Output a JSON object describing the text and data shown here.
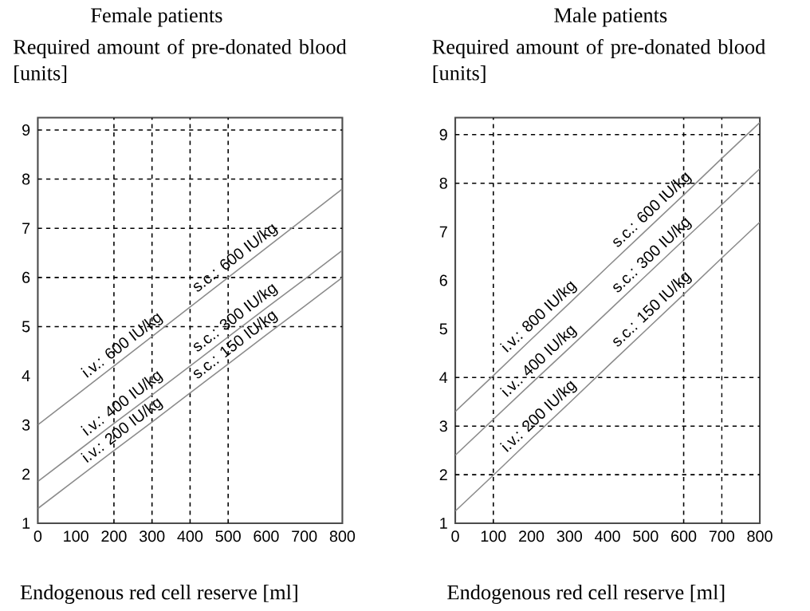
{
  "chart_data": [
    {
      "type": "line",
      "title": "Female patients",
      "ylabel": "Required amount of pre-donated blood [units]",
      "xlabel": "Endogenous red cell reserve [ml]",
      "x": [
        0,
        100,
        200,
        300,
        400,
        500,
        600,
        700,
        800
      ],
      "series": [
        {
          "color": "#8c8c8c",
          "values": [
            3.0,
            3.6,
            4.2,
            4.8,
            5.4,
            6.0,
            6.6,
            7.2,
            7.8
          ]
        },
        {
          "color": "#8c8c8c",
          "values": [
            1.85,
            2.44,
            3.03,
            3.61,
            4.2,
            4.79,
            5.38,
            5.96,
            6.55
          ]
        },
        {
          "color": "#8c8c8c",
          "values": [
            1.3,
            1.89,
            2.48,
            3.06,
            3.65,
            4.24,
            4.83,
            5.41,
            6.0
          ]
        }
      ],
      "xlim": [
        0,
        800
      ],
      "ylim": [
        1,
        9.25
      ],
      "xticks": [
        0,
        100,
        200,
        300,
        400,
        500,
        600,
        700,
        800
      ],
      "yticks": [
        1,
        2,
        3,
        4,
        5,
        6,
        7,
        8,
        9
      ],
      "ref_lines": [
        {
          "axis": "x",
          "value": 200,
          "line_style": "dashed",
          "color": "#000000"
        },
        {
          "axis": "x",
          "value": 300,
          "line_style": "dashed",
          "color": "#000000"
        },
        {
          "axis": "x",
          "value": 400,
          "line_style": "dashed",
          "color": "#000000"
        },
        {
          "axis": "x",
          "value": 500,
          "line_style": "dashed",
          "color": "#000000"
        },
        {
          "axis": "y",
          "value": 5,
          "line_style": "dashed",
          "color": "#000000"
        },
        {
          "axis": "y",
          "value": 6,
          "line_style": "dashed",
          "color": "#000000"
        },
        {
          "axis": "y",
          "value": 7,
          "line_style": "dashed",
          "color": "#000000"
        },
        {
          "axis": "y",
          "value": 8,
          "line_style": "dashed",
          "color": "#000000"
        },
        {
          "axis": "y",
          "value": 9,
          "line_style": "dashed",
          "color": "#000000"
        }
      ],
      "annotations": [
        "i.v.: 600 IU/kg",
        "s.c.: 600 IU/kg",
        "i.v.: 400 IU/kg",
        "s.c.: 300 IU/kg",
        "i.v.: 200 IU/kg",
        "s.c.: 150 IU/kg"
      ]
    },
    {
      "type": "line",
      "title": "Male patients",
      "ylabel": "Required amount of pre-donated blood [units]",
      "xlabel": "Endogenous red cell reserve [ml]",
      "x": [
        0,
        100,
        200,
        300,
        400,
        500,
        600,
        700,
        800
      ],
      "series": [
        {
          "color": "#8c8c8c",
          "values": [
            3.3,
            4.04,
            4.79,
            5.53,
            6.28,
            7.02,
            7.76,
            8.51,
            9.25
          ]
        },
        {
          "color": "#8c8c8c",
          "values": [
            2.4,
            3.14,
            3.88,
            4.61,
            5.35,
            6.09,
            6.83,
            7.56,
            8.3
          ]
        },
        {
          "color": "#8c8c8c",
          "values": [
            1.25,
            1.99,
            2.74,
            3.48,
            4.23,
            4.97,
            5.71,
            6.46,
            7.2
          ]
        }
      ],
      "xlim": [
        0,
        800
      ],
      "ylim": [
        1,
        9.35
      ],
      "xticks": [
        0,
        100,
        200,
        300,
        400,
        500,
        600,
        700,
        800
      ],
      "yticks": [
        1,
        2,
        3,
        4,
        5,
        6,
        7,
        8,
        9
      ],
      "ref_lines": [
        {
          "axis": "x",
          "value": 100,
          "line_style": "dashed",
          "color": "#000000"
        },
        {
          "axis": "x",
          "value": 600,
          "line_style": "dashed",
          "color": "#000000"
        },
        {
          "axis": "x",
          "value": 700,
          "line_style": "dashed",
          "color": "#000000"
        },
        {
          "axis": "y",
          "value": 2,
          "line_style": "dashed",
          "color": "#000000"
        },
        {
          "axis": "y",
          "value": 3,
          "line_style": "dashed",
          "color": "#000000"
        },
        {
          "axis": "y",
          "value": 4,
          "line_style": "dashed",
          "color": "#000000"
        },
        {
          "axis": "y",
          "value": 8,
          "line_style": "dashed",
          "color": "#000000"
        },
        {
          "axis": "y",
          "value": 9,
          "line_style": "dashed",
          "color": "#000000"
        }
      ],
      "annotations": [
        "i.v.: 800 IU/kg",
        "s.c.: 600 IU/kg",
        "i.v.: 400 IU/kg",
        "s.c.: 300 IU/kg",
        "i.v.: 200 IU/kg",
        "s.c.: 150 IU/kg"
      ]
    }
  ]
}
